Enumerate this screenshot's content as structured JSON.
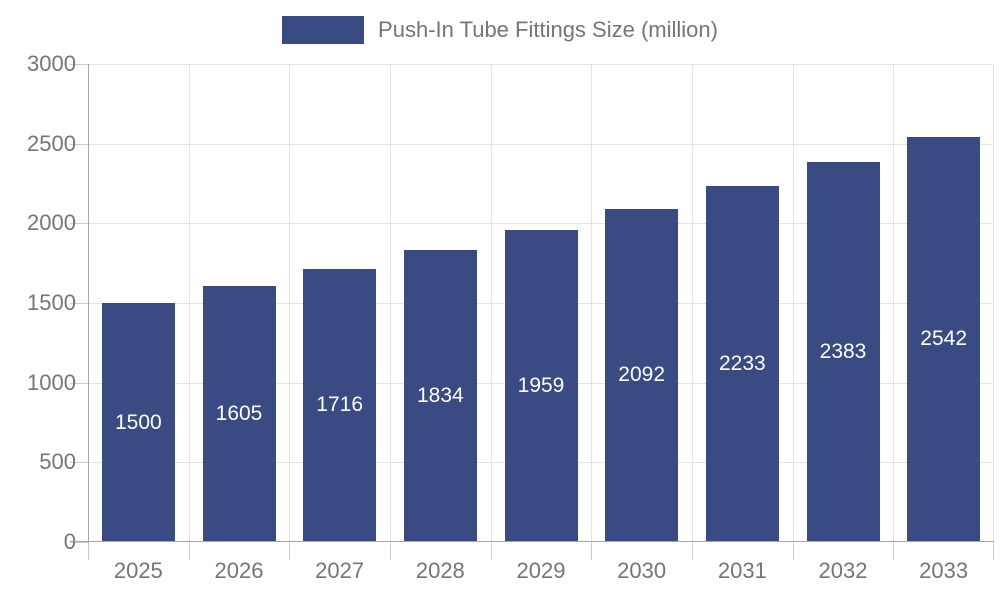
{
  "legend": {
    "label": "Push-In Tube Fittings Size (million)"
  },
  "colors": {
    "bar": "#3A4A83",
    "bar_label_text": "#ffffff",
    "axis_text": "#757575",
    "grid": "#e3e3e3",
    "axis_line": "#a6a6a6",
    "tick": "#cccccc",
    "background": "#ffffff"
  },
  "chart_data": {
    "type": "bar",
    "title": "Push-In Tube Fittings Size (million)",
    "categories": [
      "2025",
      "2026",
      "2027",
      "2028",
      "2029",
      "2030",
      "2031",
      "2032",
      "2033"
    ],
    "values": [
      1500,
      1605,
      1716,
      1834,
      1959,
      2092,
      2233,
      2383,
      2542
    ],
    "xlabel": "",
    "ylabel": "",
    "ylim": [
      0,
      3000
    ],
    "yticks": [
      0,
      500,
      1000,
      1500,
      2000,
      2500,
      3000
    ],
    "grid": true,
    "legend_position": "top-center",
    "value_labels": "inside-center"
  }
}
